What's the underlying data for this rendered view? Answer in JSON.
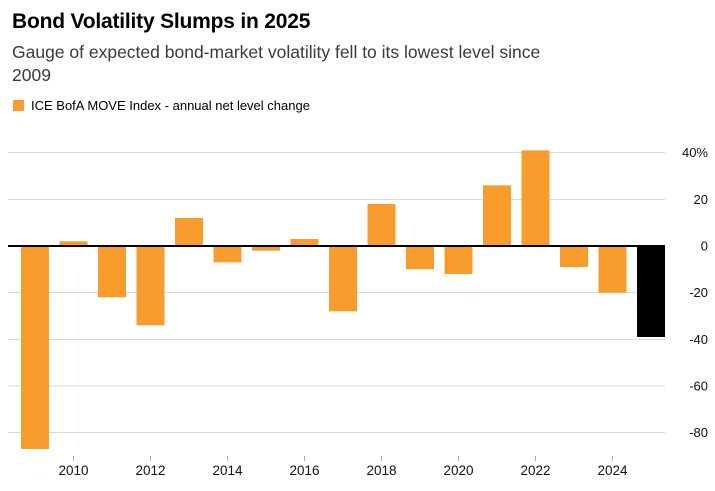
{
  "header": {
    "title": "Bond Volatility Slumps in 2025",
    "subtitle": "Gauge of expected bond-market volatility fell to its lowest level since 2009",
    "subtitle_lines": [
      "Gauge of expected bond-market volatility fell to its lowest level since",
      "2009"
    ]
  },
  "legend": {
    "label": "ICE BofA MOVE Index - annual net level change",
    "swatch_color": "#f89c2d"
  },
  "chart_data": {
    "type": "bar",
    "title": "Bond Volatility Slumps in 2025",
    "subtitle": "Gauge of expected bond-market volatility fell to its lowest level since 2009",
    "series_name": "ICE BofA MOVE Index - annual net level change",
    "categories": [
      "2009",
      "2010",
      "2011",
      "2012",
      "2013",
      "2014",
      "2015",
      "2016",
      "2017",
      "2018",
      "2019",
      "2020",
      "2021",
      "2022",
      "2023",
      "2024",
      "2025"
    ],
    "values": [
      -87,
      2,
      -22,
      -34,
      12,
      -7,
      -2,
      3,
      -28,
      18,
      -10,
      -12,
      26,
      41,
      -9,
      -20,
      -39
    ],
    "xlabel": "",
    "ylabel": "",
    "ylim": [
      -90,
      45
    ],
    "yticks": [
      40,
      20,
      0,
      -20,
      -40,
      -60,
      -80
    ],
    "ytick_labels": [
      "40%",
      "20",
      "0",
      "-20",
      "-40",
      "-60",
      "-80"
    ],
    "xtick_labels": [
      "2010",
      "2012",
      "2014",
      "2016",
      "2018",
      "2020",
      "2022",
      "2024"
    ],
    "grid": "horizontal-light",
    "legend_position": "top-left",
    "bar_color": "#f89c2d",
    "highlight_color": "#000000",
    "highlight_category": "2025",
    "zero_line_color": "#000000",
    "gridline_color": "#d8d8d8"
  }
}
